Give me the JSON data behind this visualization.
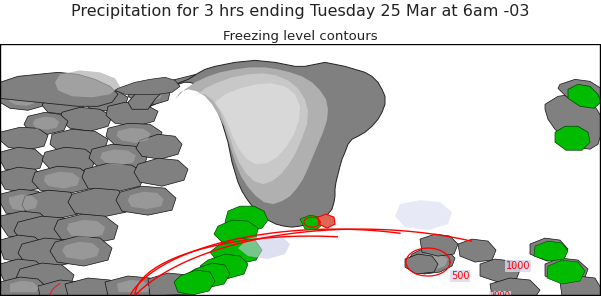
{
  "title": "Precipitation for 3 hrs ending Tuesday 25 Mar at 6am -03",
  "subtitle": "Freezing level contours",
  "title_fontsize": 11.5,
  "subtitle_fontsize": 9.5,
  "title_color": "#222222",
  "ocean_color": "#d8daf0",
  "land_color": "#909090",
  "land_dark": "#606060",
  "land_medium": "#808080",
  "land_light": "#b0b0b0",
  "land_lighter": "#c8c8c8",
  "green_precip": "#00bb00",
  "contour_red": "#ff0000",
  "header_bg": "#ffffff",
  "fig_width": 6.01,
  "fig_height": 2.96,
  "dpi": 100,
  "map_border_color": "#000000"
}
